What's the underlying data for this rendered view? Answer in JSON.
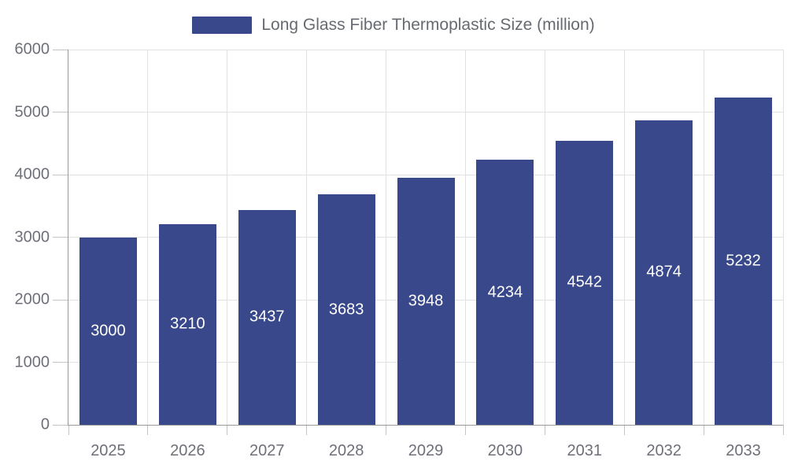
{
  "chart_data": {
    "type": "bar",
    "legend": "Long Glass Fiber Thermoplastic Size (million)",
    "legend_position": "top",
    "categories": [
      "2025",
      "2026",
      "2027",
      "2028",
      "2029",
      "2030",
      "2031",
      "2032",
      "2033"
    ],
    "values": [
      3000,
      3210,
      3437,
      3683,
      3948,
      4234,
      4542,
      4874,
      5232
    ],
    "xlabel": "",
    "ylabel": "",
    "ylim": [
      0,
      6000
    ],
    "yticks": [
      0,
      1000,
      2000,
      3000,
      4000,
      5000,
      6000
    ],
    "grid": true,
    "colors": {
      "bar": "#39488B",
      "value_label": "#FFFFFF",
      "axis_text": "#6E7079",
      "legend_text": "#666B72",
      "gridline": "#E2E2E2",
      "axis_line": "#999999",
      "tick": "#C4C4C4",
      "background": "#FFFFFF"
    }
  }
}
